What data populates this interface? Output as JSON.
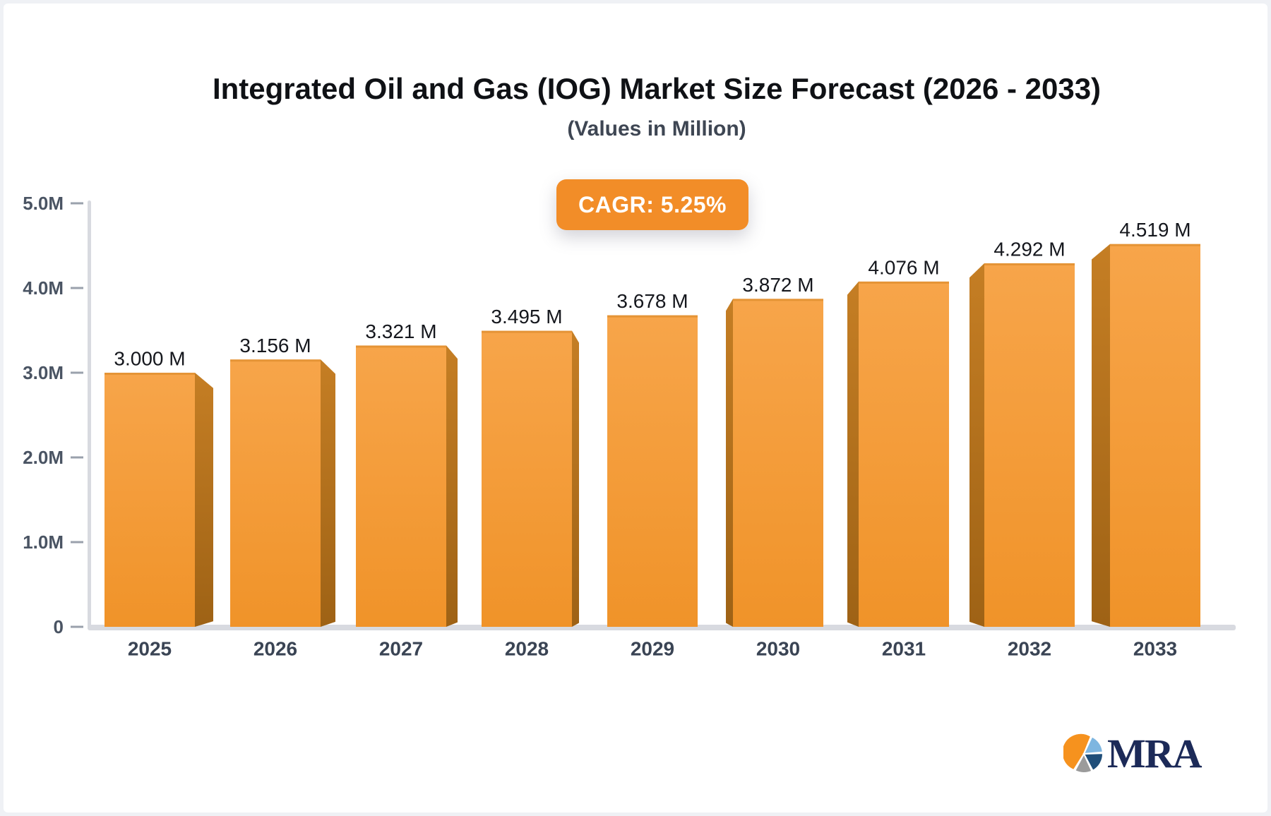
{
  "header": {
    "title": "Integrated Oil and Gas (IOG) Market Size Forecast (2026 - 2033)",
    "subtitle": "(Values in Million)"
  },
  "badge": {
    "label": "CAGR: 5.25%",
    "bg_color": "#f28d28",
    "text_color": "#ffffff"
  },
  "chart_data": {
    "type": "bar",
    "title": "Integrated Oil and Gas (IOG) Market Size Forecast (2026 - 2033)",
    "subtitle": "(Values in Million)",
    "unit": "Million",
    "categories": [
      "2025",
      "2026",
      "2027",
      "2028",
      "2029",
      "2030",
      "2031",
      "2032",
      "2033"
    ],
    "values": [
      3.0,
      3.156,
      3.321,
      3.495,
      3.678,
      3.872,
      4.076,
      4.292,
      4.519
    ],
    "value_labels": [
      "3.000 M",
      "3.156 M",
      "3.321 M",
      "3.495 M",
      "3.678 M",
      "3.872 M",
      "4.076 M",
      "4.292 M",
      "4.519 M"
    ],
    "xlabel": "",
    "ylabel": "",
    "ylim": [
      0,
      5
    ],
    "y_ticks": {
      "values": [
        0,
        1,
        2,
        3,
        4,
        5
      ],
      "labels": [
        "0",
        "1.0M",
        "2.0M",
        "3.0M",
        "4.0M",
        "5.0M"
      ]
    },
    "grid": false,
    "legend": false,
    "bar_style": "3d-perspective",
    "colors": {
      "bar_front_top": "#f7a54a",
      "bar_front_bottom": "#f09329",
      "bar_side_top": "#c57e24",
      "bar_side_bottom": "#9e6215",
      "bar_top_edge": "#d8882a",
      "axis": "#d8dae0",
      "tick_mark": "#9aa1ac",
      "tick_label": "#4a5463",
      "value_label": "#15171d",
      "category_label": "#3a4454"
    }
  },
  "logo": {
    "text": "MRA",
    "colors": {
      "orange": "#f6921e",
      "light_blue": "#7eb6e0",
      "navy": "#1f4e79",
      "gray": "#9b9b9b",
      "text": "#1c2a58"
    }
  }
}
